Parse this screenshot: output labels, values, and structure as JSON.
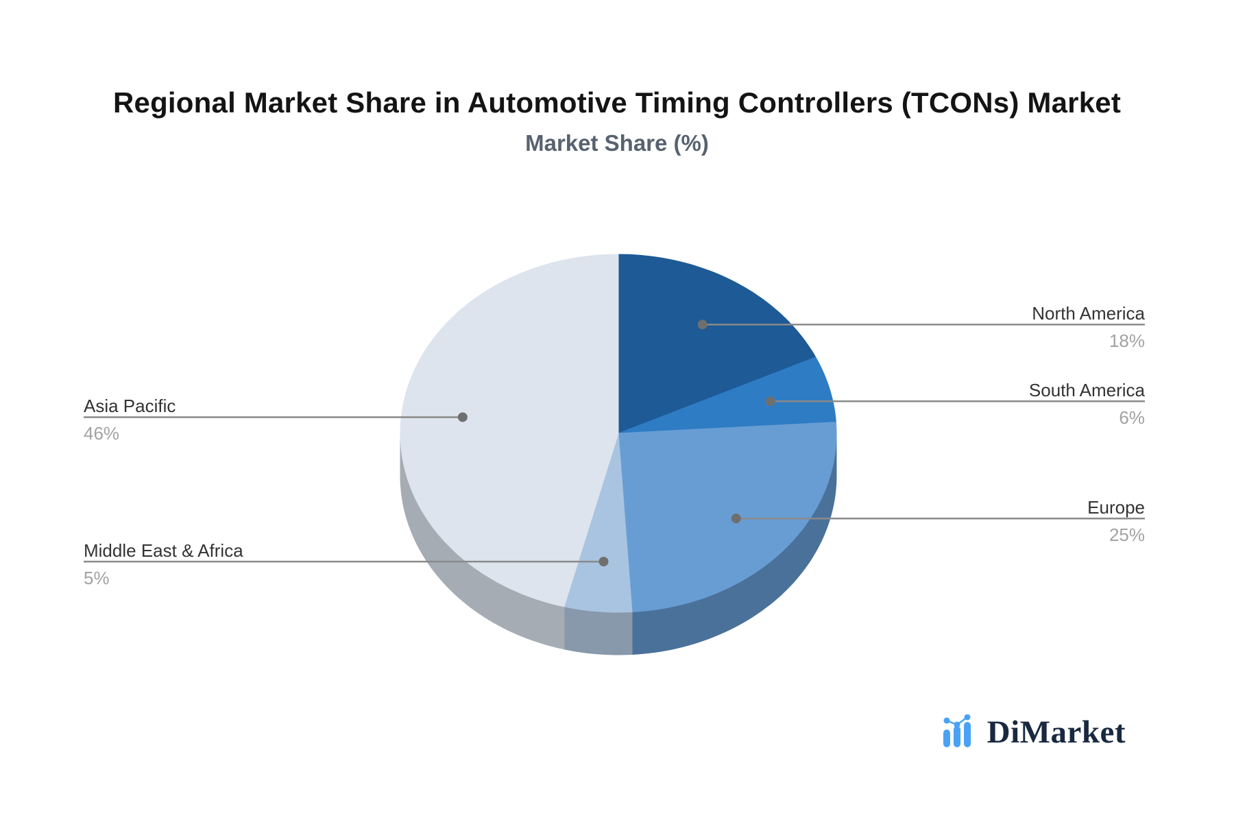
{
  "header": {
    "title": "Regional Market Share in Automotive Timing Controllers (TCONs) Market",
    "subtitle": "Market Share (%)"
  },
  "chart_data": {
    "type": "pie",
    "style": "3d",
    "title": "Regional Market Share in Automotive Timing Controllers (TCONs) Market",
    "subtitle": "Market Share (%)",
    "unit": "%",
    "start_angle_deg": 0,
    "direction": "clockwise",
    "legend_position": "none",
    "series": [
      {
        "name": "North America",
        "value": 18,
        "display": "18%",
        "color": "#1d5a96",
        "side_color": "#164873"
      },
      {
        "name": "South America",
        "value": 6,
        "display": "6%",
        "color": "#2e7cc3",
        "side_color": "#235e94"
      },
      {
        "name": "Europe",
        "value": 25,
        "display": "25%",
        "color": "#689dd4",
        "side_color": "#4a7199"
      },
      {
        "name": "Middle East & Africa",
        "value": 5,
        "display": "5%",
        "color": "#a8c4e0",
        "side_color": "#8799ab"
      },
      {
        "name": "Asia Pacific",
        "value": 46,
        "display": "46%",
        "color": "#dde4ee",
        "side_color": "#a6acb4"
      }
    ],
    "label_text_color": "#333333",
    "percent_text_color": "#a2a2a2",
    "leader_line_color": "#8a8a8a",
    "leader_dot_color": "#6f6f6f"
  },
  "branding": {
    "logo_text": "DiMarket",
    "logo_icon": "bar-chart-trend-icon",
    "logo_icon_color": "#4aa2f5",
    "logo_text_color": "#182940"
  }
}
